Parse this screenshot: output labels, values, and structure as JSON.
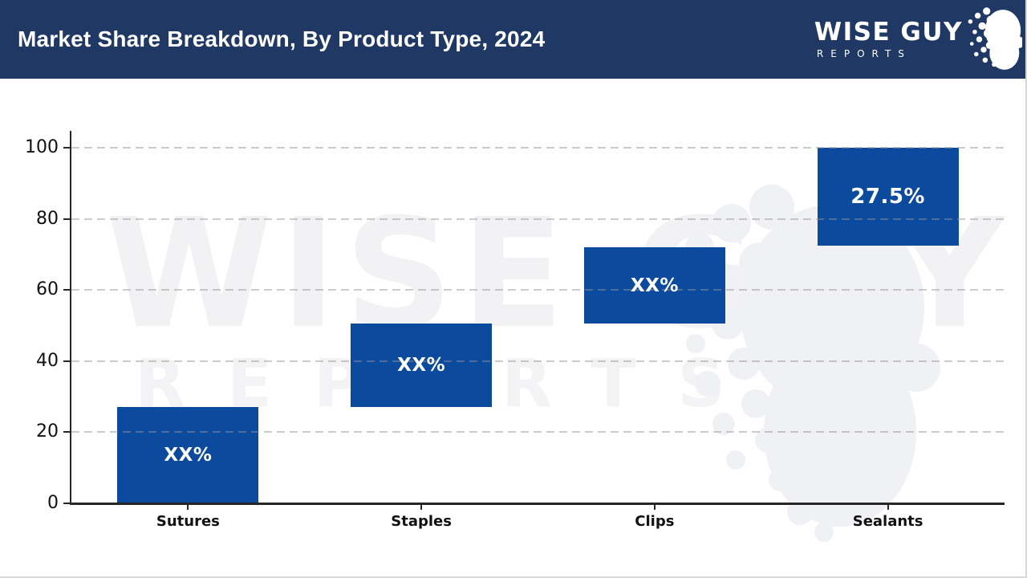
{
  "header": {
    "title": "Market Share Breakdown, By Product Type, 2024",
    "logo": {
      "line1": "WISE GUY",
      "line2": "REPORTS"
    }
  },
  "watermark": {
    "line1": "WISE GUY",
    "line2": "REPORTS"
  },
  "colors": {
    "header_bg": "#1f3864",
    "bar": "#0c4a9e",
    "axis": "#262626",
    "grid": "#d6d6d6",
    "bar_label": "#ffffff",
    "watermark": "#f1f1f4"
  },
  "chart_data": {
    "type": "bar",
    "subtype": "waterfall (floating stacked segments, cumulative left to right)",
    "title": "Market Share Breakdown, By Product Type, 2024",
    "categories": [
      "Sutures",
      "Staples",
      "Clips",
      "Sealants"
    ],
    "segments": [
      {
        "category": "Sutures",
        "label": "XX%",
        "start": 0,
        "end": 27
      },
      {
        "category": "Staples",
        "label": "XX%",
        "start": 27,
        "end": 50.5
      },
      {
        "category": "Clips",
        "label": "XX%",
        "start": 50.5,
        "end": 72
      },
      {
        "category": "Sealants",
        "label": "27.5%",
        "start": 72.5,
        "end": 100
      }
    ],
    "visible_values": {
      "Sealants": 27.5
    },
    "xlabel": "",
    "ylabel": "",
    "ylim": [
      0,
      100
    ],
    "yticks": [
      0,
      20,
      40,
      60,
      80,
      100
    ],
    "grid": "horizontal dashed, drawn over bars",
    "legend": false
  }
}
